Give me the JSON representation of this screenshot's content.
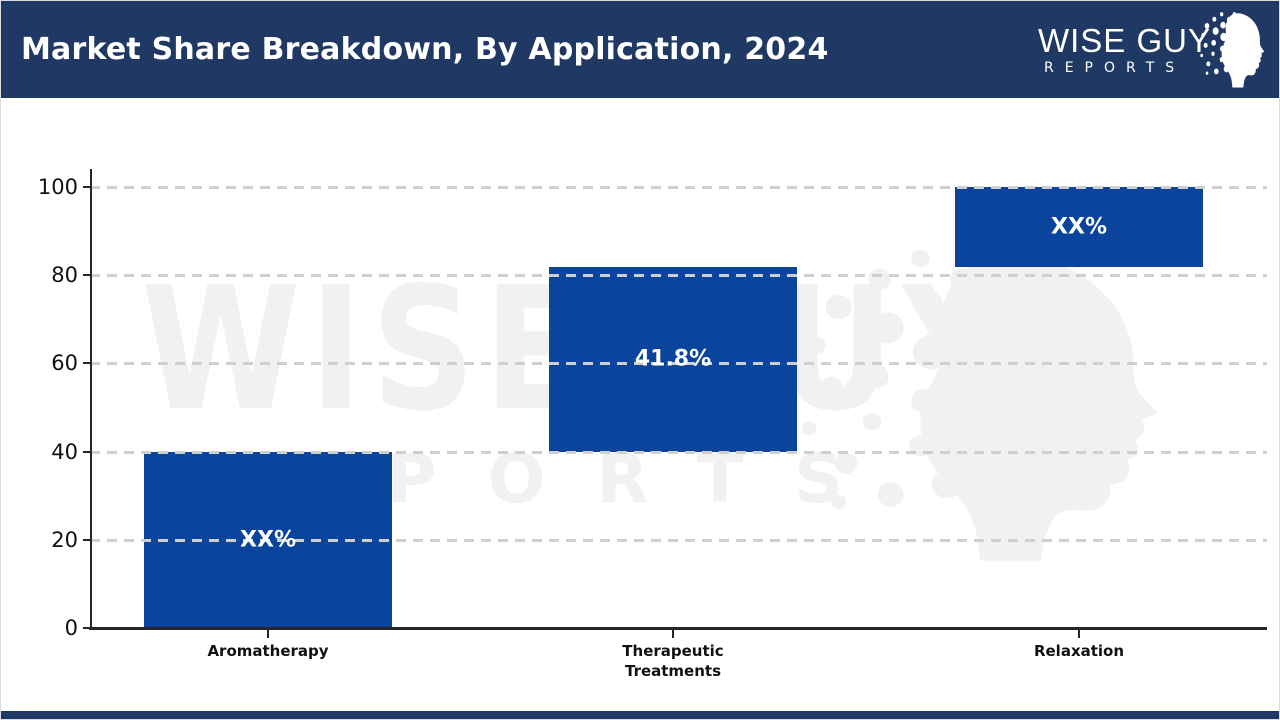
{
  "header": {
    "title": "Market Share Breakdown, By Application, 2024",
    "logo": {
      "brand_top": "WISE GUY",
      "brand_bottom": "REPORTS"
    }
  },
  "watermark": {
    "brand_top": "WISE GUY",
    "brand_bottom": "REPORTS"
  },
  "colors": {
    "header_bg": "#1F3864",
    "footer_bg": "#1F3864",
    "bar": "#0A449C",
    "bar_label": "#FFFFFF",
    "grid": "#CFCFCF",
    "axis": "#262626",
    "tick_label": "#111111",
    "watermark": "#F1F1F3"
  },
  "chart_data": {
    "type": "bar",
    "subtype": "floating-segment-bar (stacked breakdown, segments start where previous ends)",
    "title": "Market Share Breakdown, By Application, 2024",
    "categories": [
      "Aromatherapy",
      "Therapeutic\nTreatments",
      "Relaxation"
    ],
    "segments": [
      {
        "category": "Aromatherapy",
        "from": 0,
        "to": 40,
        "label": "XX%"
      },
      {
        "category": "Therapeutic Treatments",
        "from": 40,
        "to": 81.8,
        "label": "41.8%"
      },
      {
        "category": "Relaxation",
        "from": 81.8,
        "to": 100,
        "label": "XX%"
      }
    ],
    "ylabel": "",
    "xlabel": "",
    "yticks": [
      0,
      20,
      40,
      60,
      80,
      100
    ],
    "ylim": [
      0,
      100
    ],
    "grid": "horizontal dashed, drawn over bars",
    "legend": "none"
  }
}
